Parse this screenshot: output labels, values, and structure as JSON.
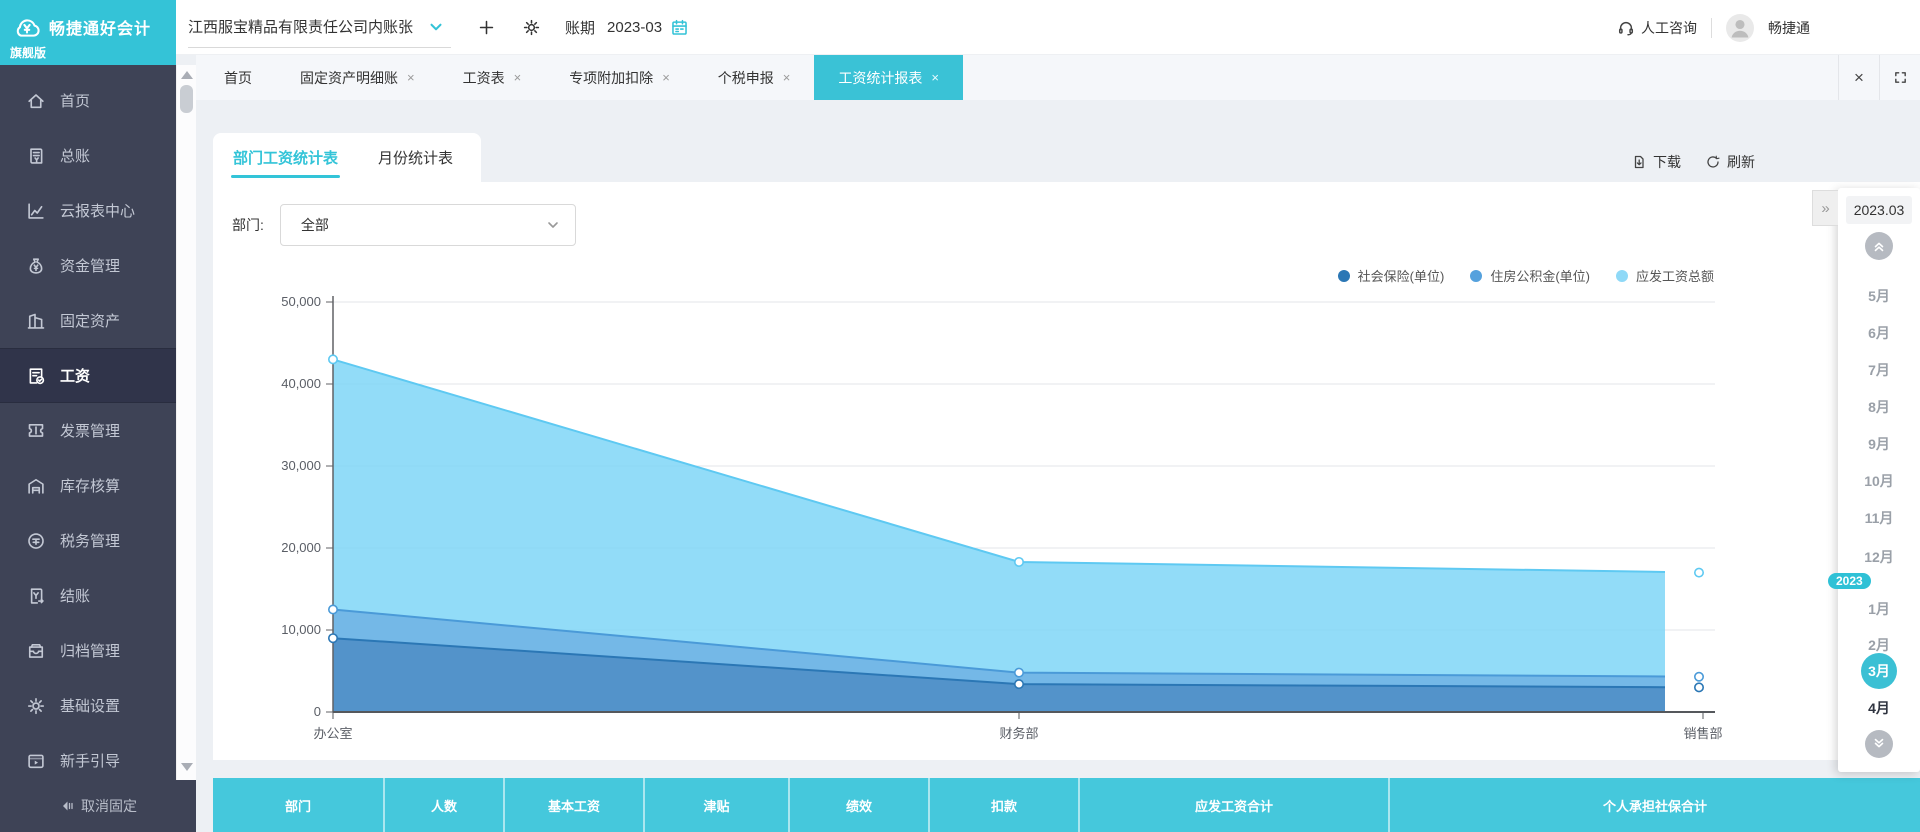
{
  "colors": {
    "brand": "#34c3d7",
    "sidebar_bg": "#3e4356",
    "table_header_bg": "#45c8dc",
    "page_bg": "#edf0f4",
    "active_tab_bg": "#3ac2d6"
  },
  "brand": {
    "name": "畅捷通好会计",
    "edition": "旗舰版"
  },
  "header": {
    "company": "江西服宝精品有限责任公司内账张",
    "period_label": "账期",
    "period_value": "2023-03",
    "support_label": "人工咨询",
    "user_name": "畅捷通"
  },
  "tabs": [
    {
      "label": "首页",
      "closable": false,
      "active": false
    },
    {
      "label": "固定资产明细账",
      "closable": true,
      "active": false
    },
    {
      "label": "工资表",
      "closable": true,
      "active": false
    },
    {
      "label": "专项附加扣除",
      "closable": true,
      "active": false
    },
    {
      "label": "个税申报",
      "closable": true,
      "active": false
    },
    {
      "label": "工资统计报表",
      "closable": true,
      "active": true
    }
  ],
  "sidebar": {
    "items": [
      {
        "label": "首页",
        "icon": "home",
        "active": false
      },
      {
        "label": "总账",
        "icon": "ledger",
        "active": false
      },
      {
        "label": "云报表中心",
        "icon": "report",
        "active": false
      },
      {
        "label": "资金管理",
        "icon": "moneybag",
        "active": false
      },
      {
        "label": "固定资产",
        "icon": "building",
        "active": false
      },
      {
        "label": "工资",
        "icon": "salary",
        "active": true
      },
      {
        "label": "发票管理",
        "icon": "invoice",
        "active": false
      },
      {
        "label": "库存核算",
        "icon": "warehouse",
        "active": false
      },
      {
        "label": "税务管理",
        "icon": "tax",
        "active": false
      },
      {
        "label": "结账",
        "icon": "closing",
        "active": false
      },
      {
        "label": "归档管理",
        "icon": "archive",
        "active": false
      },
      {
        "label": "基础设置",
        "icon": "gear",
        "active": false
      },
      {
        "label": "新手引导",
        "icon": "guide",
        "active": false
      }
    ],
    "unpin_label": "取消固定"
  },
  "subtabs": [
    {
      "label": "部门工资统计表",
      "active": true
    },
    {
      "label": "月份统计表",
      "active": false
    }
  ],
  "toolbar": {
    "download_label": "下载",
    "refresh_label": "刷新"
  },
  "filter": {
    "label": "部门:",
    "value": "全部"
  },
  "chart_data": {
    "type": "area",
    "categories": [
      "办公室",
      "财务部",
      "销售部"
    ],
    "series": [
      {
        "name": "社会保险(单位)",
        "values": [
          9000,
          3400,
          3000
        ],
        "line": "#2b77b5",
        "fill": "#4d8cc4",
        "dot": "#2b77b5"
      },
      {
        "name": "住房公积金(单位)",
        "values": [
          12500,
          4800,
          4300
        ],
        "line": "#4a9ad8",
        "fill": "#6fb1e4",
        "dot": "#55a1dd"
      },
      {
        "name": "应发工资总额",
        "values": [
          43000,
          18300,
          17000
        ],
        "line": "#5ec9f2",
        "fill": "#7fd6f7",
        "dot": "#8fd9f7"
      }
    ],
    "ylim": [
      0,
      50000
    ],
    "yticks": [
      "0",
      "10,000",
      "20,000",
      "30,000",
      "40,000",
      "50,000"
    ],
    "grid": true,
    "legend_position": "top-right",
    "note": "independent overlapping areas; area fill clipped before last category, endpoint markers shown at 销售部"
  },
  "table": {
    "columns": [
      "部门",
      "人数",
      "基本工资",
      "津贴",
      "绩效",
      "扣款",
      "应发工资合计",
      "个人承担社保合计"
    ]
  },
  "month_panel": {
    "collapse_glyph": "»",
    "period": "2023.03",
    "months_top": [
      "5月",
      "6月",
      "7月",
      "8月",
      "9月",
      "10月",
      "11月",
      "12月"
    ],
    "year_badge": "2023",
    "months_bottom": [
      {
        "label": "1月",
        "state": "normal"
      },
      {
        "label": "2月",
        "state": "normal"
      },
      {
        "label": "3月",
        "state": "selected"
      },
      {
        "label": "4月",
        "state": "current"
      }
    ]
  }
}
